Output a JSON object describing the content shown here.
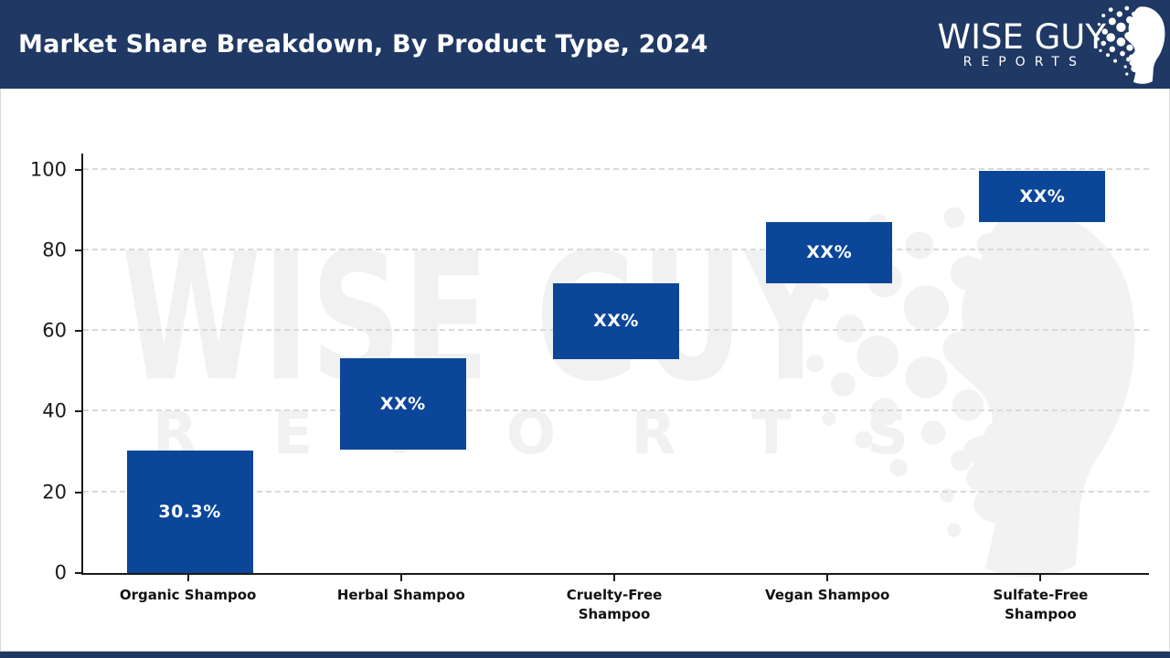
{
  "header": {
    "title": "Market Share Breakdown, By Product Type, 2024",
    "logo": {
      "brand": "WISE GUY",
      "sub": "REPORTS"
    }
  },
  "watermark": {
    "brand": "WISE GUY",
    "sub": "R E P O R T S"
  },
  "colors": {
    "header_bg": "#1F3864",
    "footer_bg": "#1F3864",
    "bar": "#0B4699",
    "bar_label": "#FFFFFF",
    "axis": "#1A1A1A",
    "grid": "#D9D9D9",
    "watermark": "#F1F1F1",
    "title_text": "#FFFFFF"
  },
  "chart_data": {
    "type": "bar",
    "subtype": "waterfall-floating-segments",
    "title": "Market Share Breakdown, By Product Type, 2024",
    "categories": [
      "Organic Shampoo",
      "Herbal Shampoo",
      "Cruelty-Free Shampoo",
      "Vegan Shampoo",
      "Sulfate-Free Shampoo"
    ],
    "bars": [
      {
        "category": "Organic Shampoo",
        "display": "Organic Shampoo",
        "start": 0,
        "end": 30.3,
        "label": "30.3%"
      },
      {
        "category": "Herbal Shampoo",
        "display": "Herbal Shampoo",
        "start": 30.5,
        "end": 53.2,
        "label": "XX%"
      },
      {
        "category": "Cruelty-Free Shampoo",
        "display": "Cruelty-Free\nShampoo",
        "start": 53.0,
        "end": 71.9,
        "label": "XX%"
      },
      {
        "category": "Vegan Shampoo",
        "display": "Vegan Shampoo",
        "start": 71.9,
        "end": 87.0,
        "label": "XX%"
      },
      {
        "category": "Sulfate-Free Shampoo",
        "display": "Sulfate-Free\nShampoo",
        "start": 87.0,
        "end": 99.8,
        "label": "XX%"
      }
    ],
    "ylabel": "",
    "xlabel": "",
    "yticks": [
      0,
      20,
      40,
      60,
      80,
      100
    ],
    "ylim": [
      0,
      104
    ],
    "grid": "dashed-horizontal",
    "legend": "none",
    "bar_color": "#0B4699",
    "label_color": "#FFFFFF"
  }
}
